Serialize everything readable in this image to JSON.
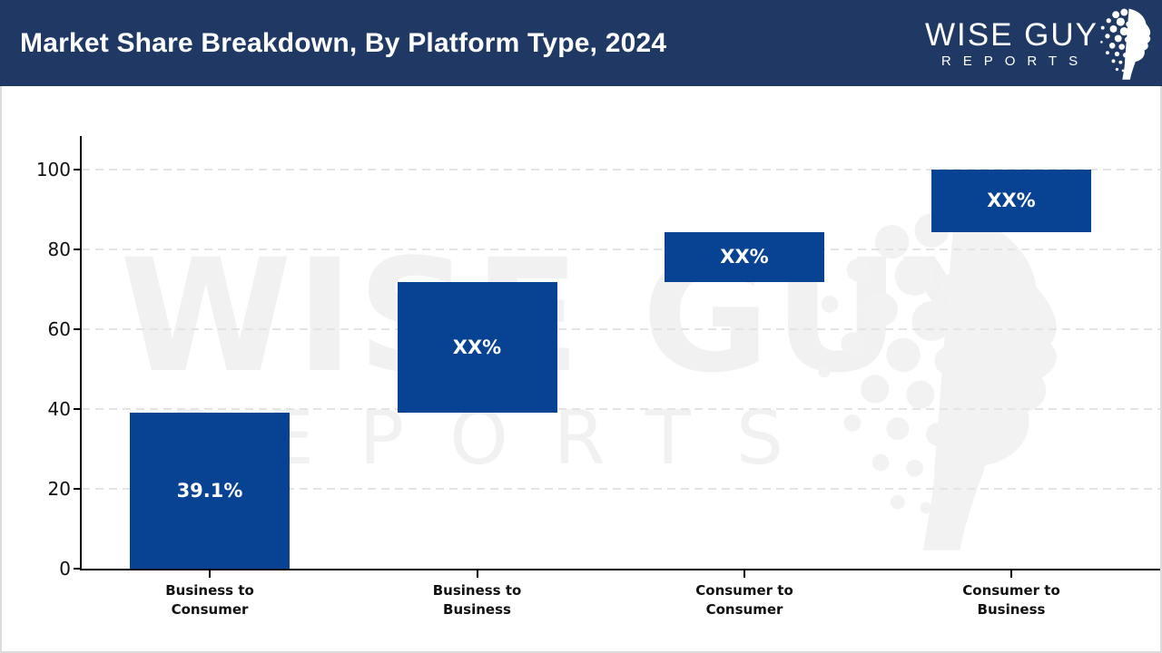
{
  "header": {
    "title": "Market Share Breakdown, By Platform Type, 2024",
    "bg_color": "#203864",
    "logo": {
      "line1": "WISE GUY",
      "line2": "REPORTS"
    }
  },
  "watermark": {
    "line1": "WISE GUY",
    "line2": "REPORTS"
  },
  "chart_data": {
    "type": "bar",
    "subtype": "waterfall",
    "title": "Market Share Breakdown, By Platform Type, 2024",
    "xlabel": "",
    "ylabel": "",
    "ylim": [
      0,
      100
    ],
    "y_ticks": [
      0,
      20,
      40,
      60,
      80,
      100
    ],
    "grid": "horizontal-dashed",
    "legend": "none",
    "bar_color": "#074392",
    "bar_label_color": "#ffffff",
    "axis_color": "#000000",
    "gridline_color": "#e4e4e4",
    "categories": [
      "Business to Consumer",
      "Business to Business",
      "Consumer to Consumer",
      "Consumer to Business"
    ],
    "categories_lines": [
      [
        "Business to",
        "Consumer"
      ],
      [
        "Business to",
        "Business"
      ],
      [
        "Consumer to",
        "Consumer"
      ],
      [
        "Consumer to",
        "Business"
      ]
    ],
    "segments": [
      {
        "category": "Business to Consumer",
        "label": "39.1%",
        "start": 0,
        "end": 39.1,
        "value": 39.1
      },
      {
        "category": "Business to Business",
        "label": "XX%",
        "start": 39.1,
        "end": 71.8,
        "value": 32.7
      },
      {
        "category": "Consumer to Consumer",
        "label": "XX%",
        "start": 71.8,
        "end": 84.4,
        "value": 12.6
      },
      {
        "category": "Consumer to Business",
        "label": "XX%",
        "start": 84.4,
        "end": 100,
        "value": 15.6
      }
    ]
  }
}
